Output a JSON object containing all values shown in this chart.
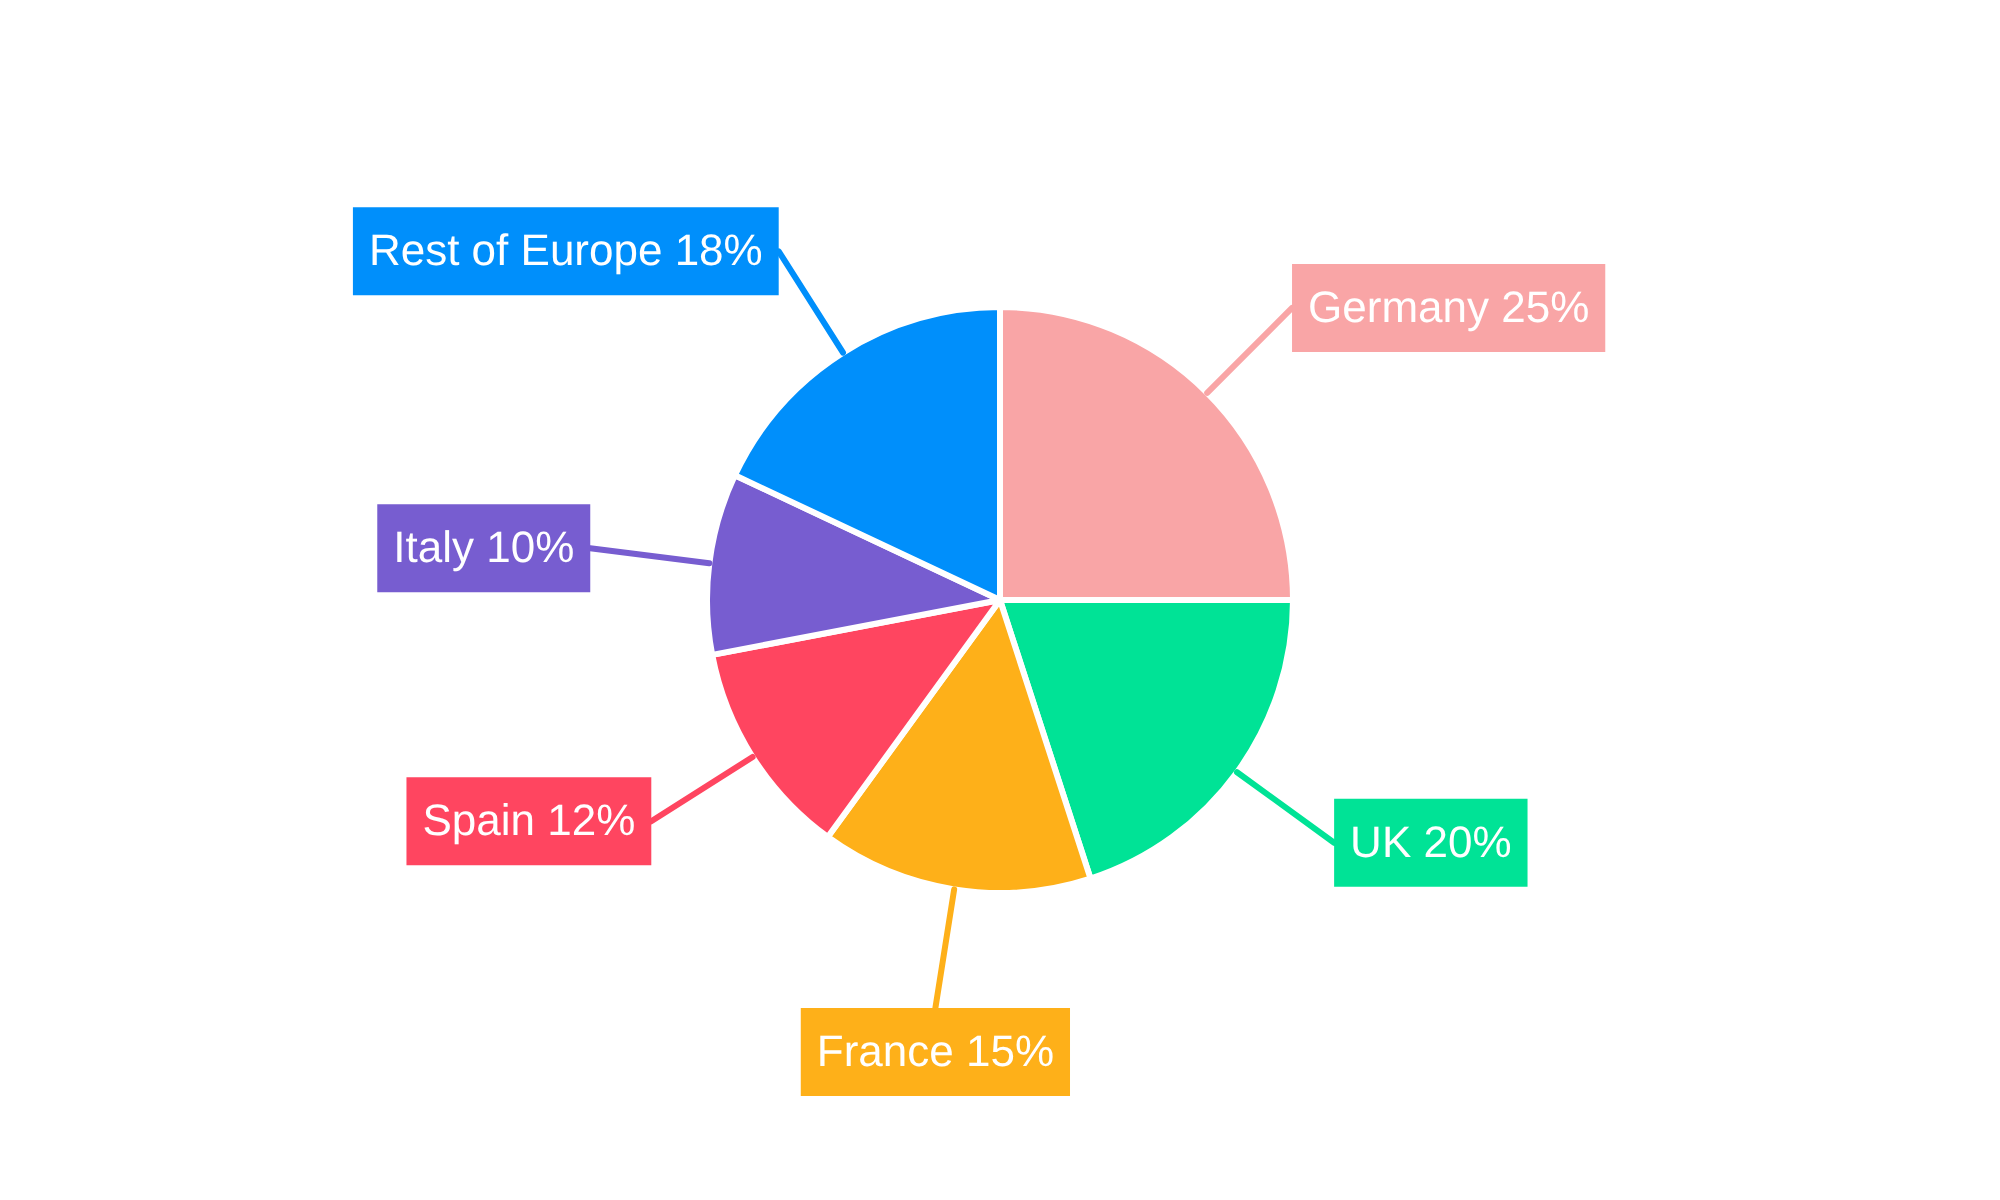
{
  "chart_data": {
    "type": "pie",
    "categories": [
      "Germany",
      "UK",
      "France",
      "Spain",
      "Italy",
      "Rest of Europe"
    ],
    "values": [
      25,
      20,
      15,
      12,
      10,
      18
    ],
    "value_labels": [
      "25%",
      "20%",
      "15%",
      "12%",
      "10%",
      "18%"
    ],
    "colors": [
      "#f9a5a6",
      "#00e396",
      "#feb019",
      "#ff4560",
      "#775dd0",
      "#008ffb"
    ],
    "legend": false
  }
}
